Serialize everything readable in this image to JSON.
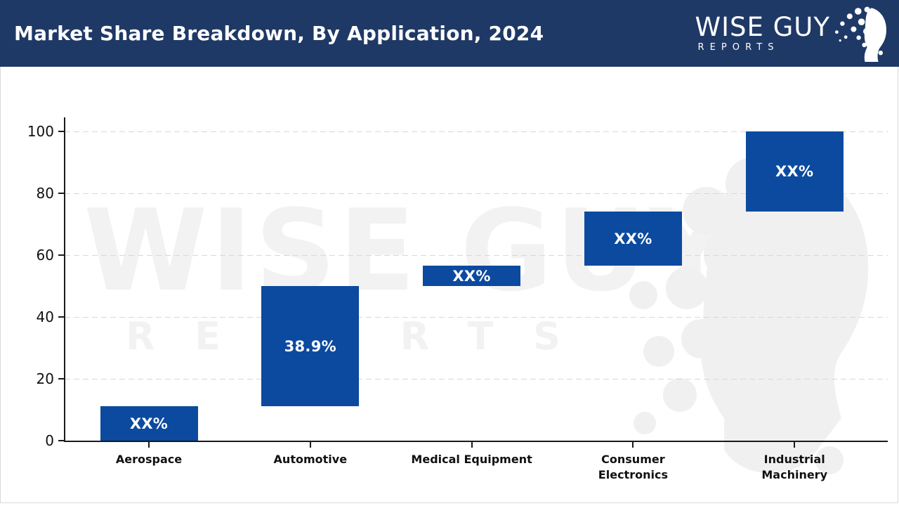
{
  "header": {
    "title": "Market Share Breakdown, By Application, 2024",
    "bg_color": "#1F3966",
    "logo": {
      "brand_line1": "WISE GUY",
      "brand_line2": "REPORTS"
    }
  },
  "watermark": {
    "line1": "WISE GUY",
    "line2": "REPORTS"
  },
  "chart_data": {
    "type": "bar",
    "variant": "floating-waterfall",
    "title": "Market Share Breakdown, By Application, 2024",
    "xlabel": "",
    "ylabel": "",
    "ylim": [
      0,
      100
    ],
    "yticks": [
      0,
      20,
      40,
      60,
      80,
      100
    ],
    "grid": "horizontal-dashed",
    "legend": "none",
    "bar_color": "#0C4A9F",
    "bar_label_color": "#FFFFFF",
    "categories": [
      "Aerospace",
      "Automotive",
      "Medical Equipment",
      "Consumer\nElectronics",
      "Industrial\nMachinery"
    ],
    "segments": [
      {
        "category": "Aerospace",
        "start": 0,
        "end": 11.1,
        "label": "XX%"
      },
      {
        "category": "Automotive",
        "start": 11.1,
        "end": 50,
        "label": "38.9%"
      },
      {
        "category": "Medical Equipment",
        "start": 50,
        "end": 56.5,
        "label": "XX%"
      },
      {
        "category": "Consumer Electronics",
        "start": 56.5,
        "end": 74,
        "label": "XX%"
      },
      {
        "category": "Industrial Machinery",
        "start": 74,
        "end": 100,
        "label": "XX%"
      }
    ]
  }
}
